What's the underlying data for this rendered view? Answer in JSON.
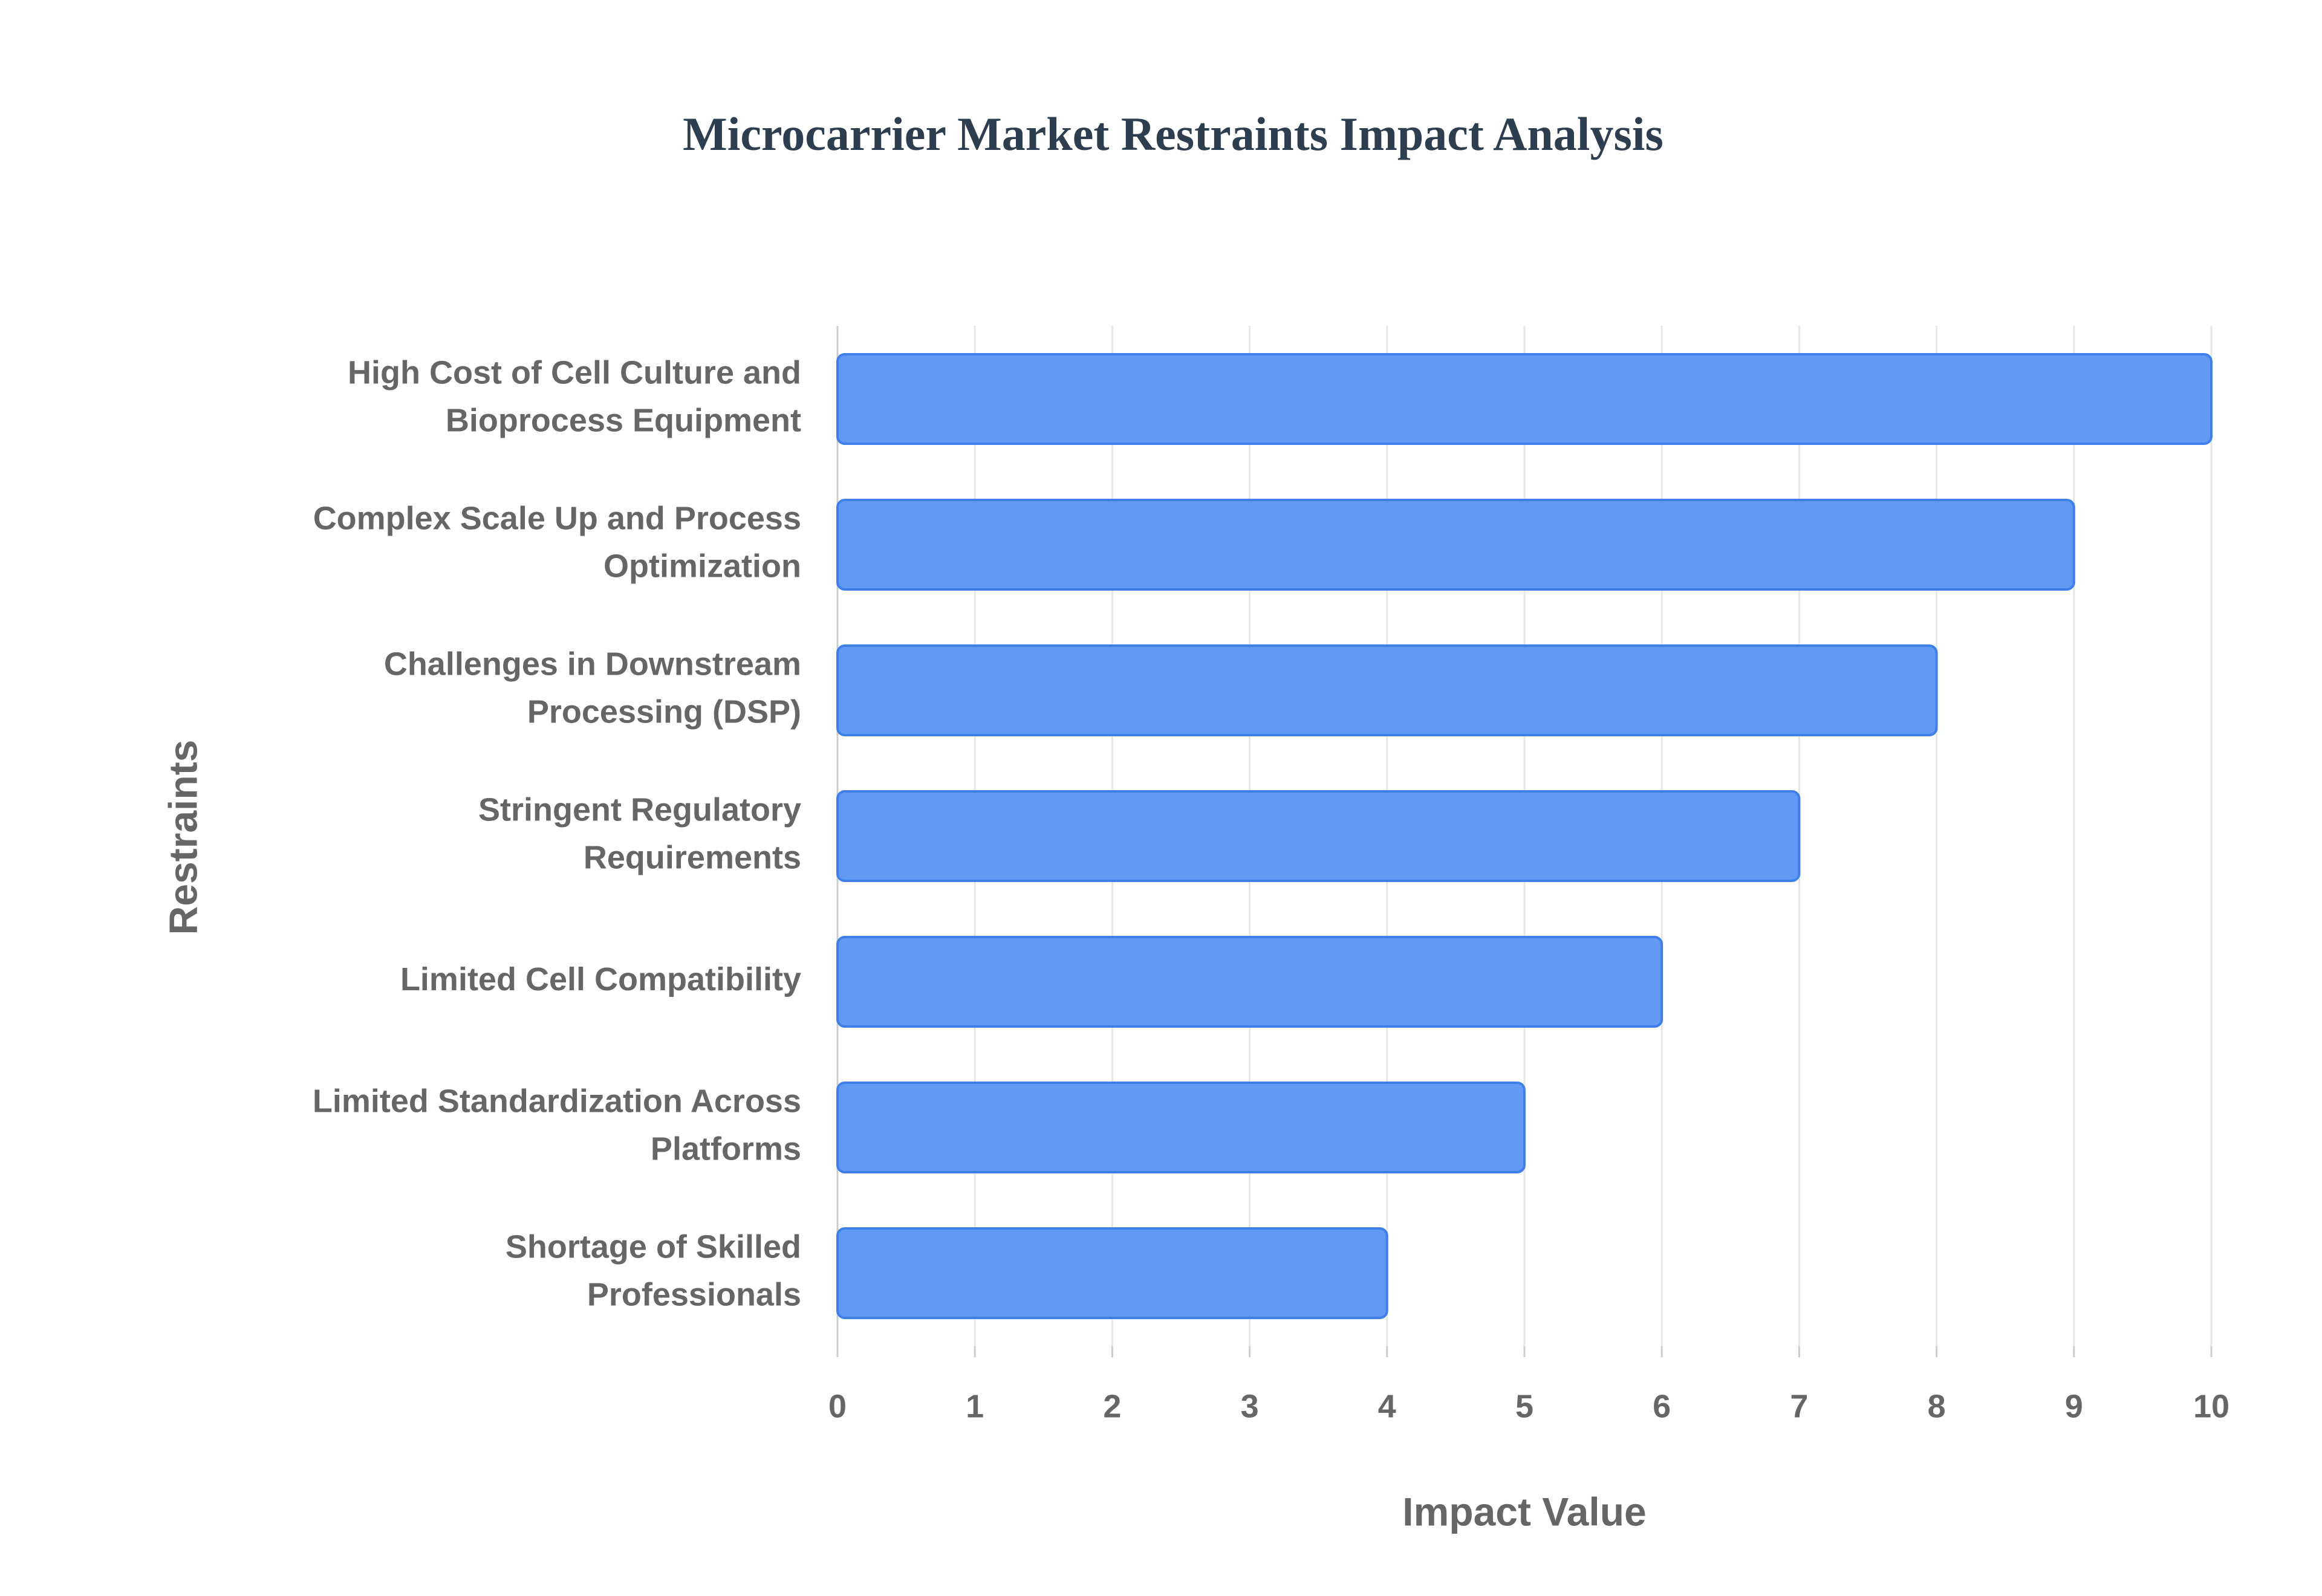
{
  "chart_data": {
    "type": "bar",
    "orientation": "horizontal",
    "title": "Microcarrier Market Restraints Impact Analysis",
    "x_label": "Impact Value",
    "y_label": "Restraints",
    "categories": [
      "High Cost of Cell Culture and Bioprocess Equipment",
      "Complex Scale Up and Process Optimization",
      "Challenges in Downstream Processing (DSP)",
      "Stringent Regulatory Requirements",
      "Limited Cell Compatibility",
      "Limited Standardization Across Platforms",
      "Shortage of Skilled Professionals"
    ],
    "values": [
      10,
      9,
      8,
      7,
      6,
      5,
      4
    ],
    "color": "#6199f5",
    "xlim": [
      0,
      10
    ],
    "xticks": [
      0,
      1,
      2,
      3,
      4,
      5,
      6,
      7,
      8,
      9,
      10
    ],
    "grid": true
  }
}
